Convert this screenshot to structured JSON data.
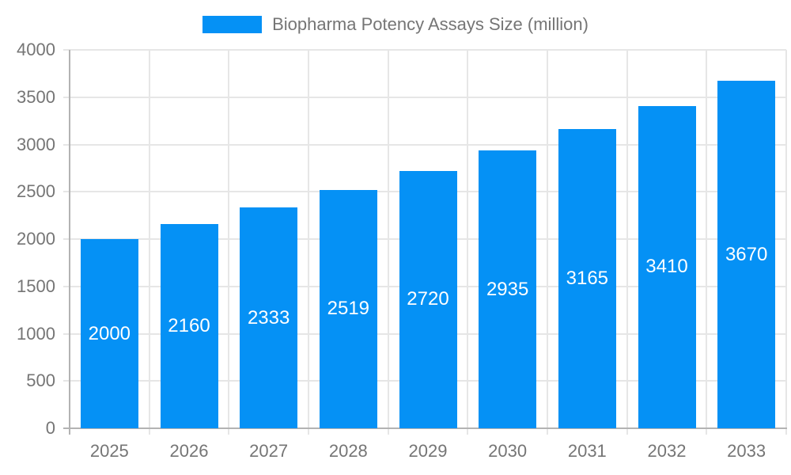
{
  "legend": {
    "label": "Biopharma Potency Assays Size (million)"
  },
  "chart_data": {
    "type": "bar",
    "title": "Biopharma Potency Assays Size (million)",
    "categories": [
      "2025",
      "2026",
      "2027",
      "2028",
      "2029",
      "2030",
      "2031",
      "2032",
      "2033"
    ],
    "values": [
      2000,
      2160,
      2333,
      2519,
      2720,
      2935,
      3165,
      3410,
      3670
    ],
    "xlabel": "",
    "ylabel": "",
    "ylim": [
      0,
      4000
    ],
    "yticks": [
      0,
      500,
      1000,
      1500,
      2000,
      2500,
      3000,
      3500,
      4000
    ],
    "grid": true,
    "legend_position": "top",
    "value_labels": "inside-center"
  },
  "colors": {
    "bar": "#0591f5",
    "grid": "#e6e6e6",
    "axis": "#b3b3b3",
    "tick_text": "#757575",
    "legend_text": "#757575",
    "value_text": "#ffffff",
    "background": "#ffffff"
  }
}
